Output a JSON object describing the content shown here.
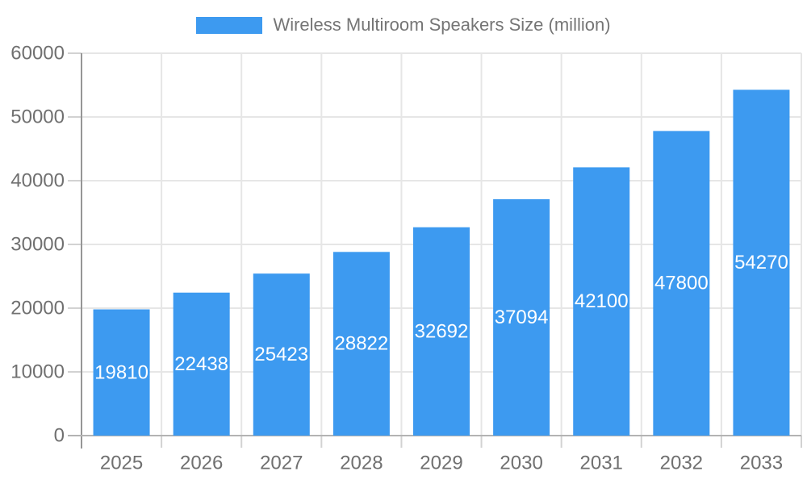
{
  "chart_data": {
    "type": "bar",
    "title": "Wireless Multiroom Speakers Size (million)",
    "categories": [
      "2025",
      "2026",
      "2027",
      "2028",
      "2029",
      "2030",
      "2031",
      "2032",
      "2033"
    ],
    "series": [
      {
        "name": "Wireless Multiroom Speakers Size (million)",
        "values": [
          19810,
          22438,
          25423,
          28822,
          32692,
          37094,
          42100,
          47800,
          54270
        ]
      }
    ],
    "xlabel": "",
    "ylabel": "",
    "ylim": [
      0,
      60000
    ],
    "ytick_step": 10000,
    "ytick_labels": [
      "0",
      "10000",
      "20000",
      "30000",
      "40000",
      "50000",
      "60000"
    ],
    "grid": true,
    "legend_position": "top",
    "value_labels": "inside-center"
  },
  "colors": {
    "bar": "#3D9AF0",
    "value_label": "#ffffff",
    "axis_text": "#707070",
    "title_text": "#757575",
    "gridline": "#e6e6e6",
    "tick": "#d2d2d2",
    "y_axis_line": "#969696",
    "x_baseline": "#b3b3b3",
    "background": "#ffffff"
  }
}
